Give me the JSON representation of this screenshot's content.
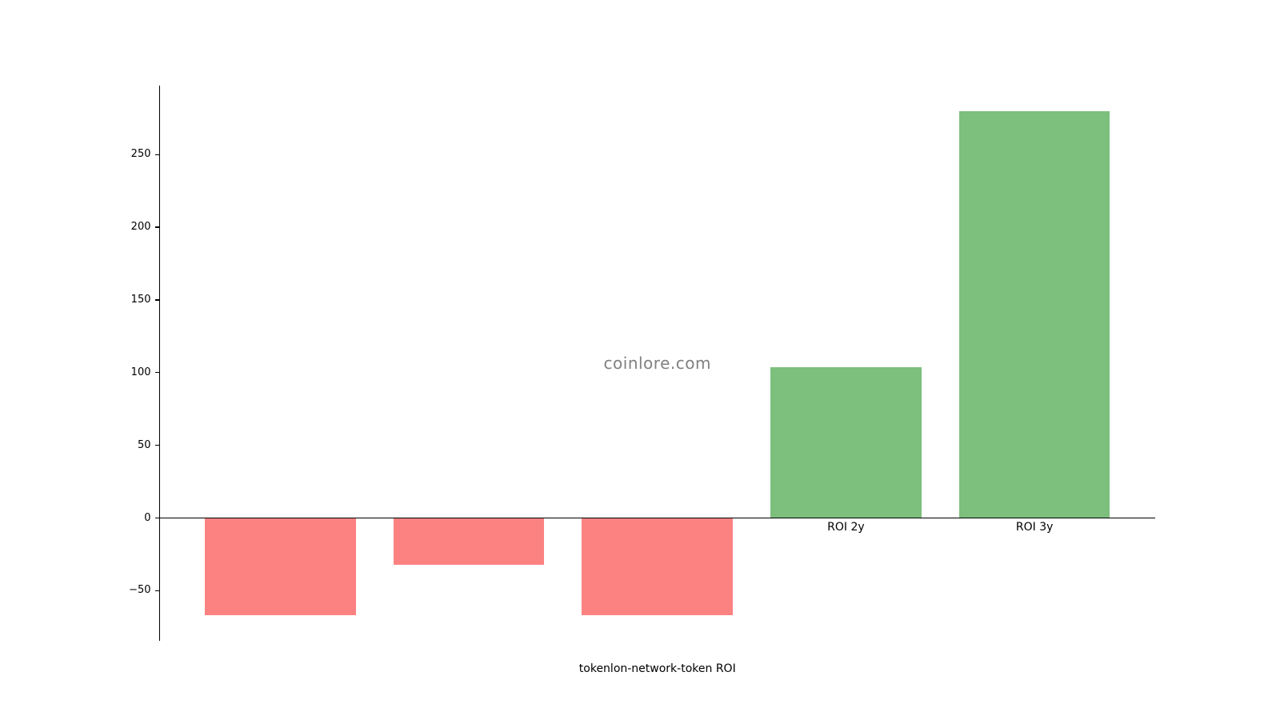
{
  "watermark": "coinlore.com",
  "chart_data": {
    "type": "bar",
    "title": "tokenlon-network-token ROI",
    "xlabel": "",
    "ylabel": "",
    "categories": [
      "",
      "",
      "",
      "ROI 2y",
      "ROI 3y"
    ],
    "values": [
      -66.8,
      -32.1,
      -66.8,
      103.6,
      280.0
    ],
    "yticks": [
      250,
      200,
      150,
      100,
      50,
      0,
      -50
    ],
    "ylim": [
      -84.4,
      297.4
    ],
    "xlim": [
      -0.64,
      4.64
    ],
    "bar_width": 0.8,
    "grid": false,
    "legend": "none",
    "colors": {
      "positive": "#7dbf7d",
      "negative": "#fc8282",
      "axis": "#000000",
      "watermark_text": "#808080"
    }
  }
}
